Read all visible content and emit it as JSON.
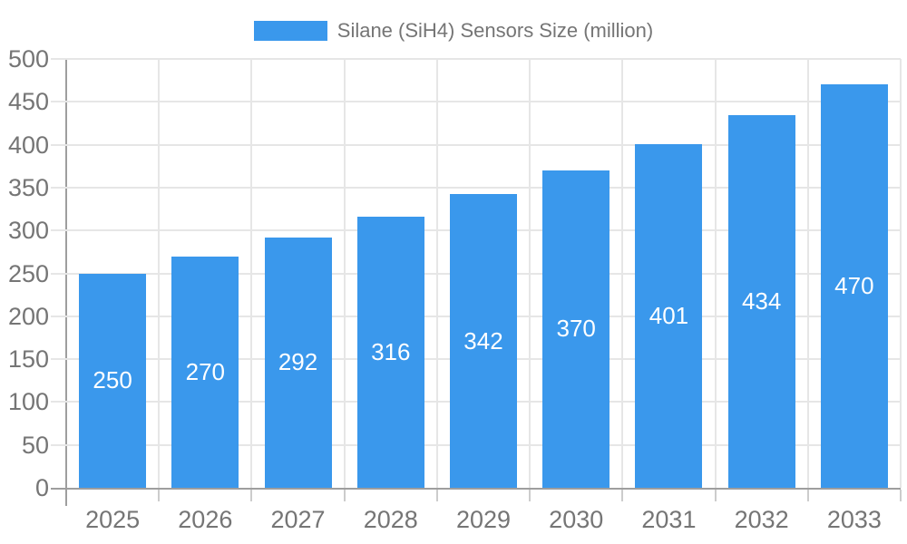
{
  "chart_data": {
    "type": "bar",
    "title": "Silane (SiH4) Sensors Size (million)",
    "legend_position": "top",
    "categories": [
      "2025",
      "2026",
      "2027",
      "2028",
      "2029",
      "2030",
      "2031",
      "2032",
      "2033"
    ],
    "series": [
      {
        "name": "Silane (SiH4) Sensors Size (million)",
        "values": [
          250,
          270,
          292,
          316,
          342,
          370,
          401,
          434,
          470
        ]
      }
    ],
    "xlabel": "",
    "ylabel": "",
    "ylim": [
      0,
      500
    ],
    "ytick_step": 50,
    "grid": true,
    "value_label_position": "inside-center",
    "colors": {
      "bar": "#3A98EC",
      "axis_text": "#757575",
      "value_label_text": "#FFFFFF",
      "axis_line": "#9E9E9E",
      "gridline": "#E6E6E6",
      "tick": "#CCCCCC",
      "background": "#FFFFFF"
    }
  }
}
